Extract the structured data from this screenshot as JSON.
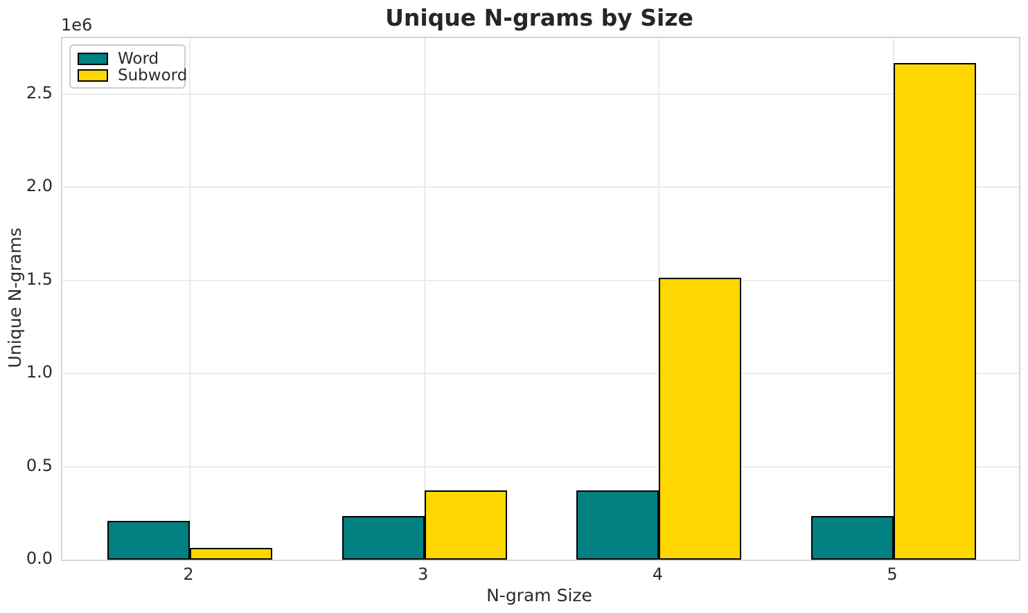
{
  "chart_data": {
    "type": "bar",
    "title": "Unique N-grams by Size",
    "xlabel": "N-gram Size",
    "ylabel": "Unique N-grams",
    "offset_text": "1e6",
    "categories": [
      "2",
      "3",
      "4",
      "5"
    ],
    "series": [
      {
        "name": "Word",
        "color": "#008080",
        "values": [
          210000,
          235000,
          370000,
          235000
        ]
      },
      {
        "name": "Subword",
        "color": "#FFD700",
        "values": [
          63000,
          370000,
          1515000,
          2665000
        ]
      }
    ],
    "bar_edge_color": "#000000",
    "ylim": [
      0,
      2800000
    ],
    "yticks": [
      0,
      500000,
      1000000,
      1500000,
      2000000,
      2500000
    ],
    "ytick_labels": [
      "0.0",
      "0.5",
      "1.0",
      "1.5",
      "2.0",
      "2.5"
    ],
    "grid": true,
    "legend_position": "upper left"
  },
  "colors": {
    "background": "#ffffff",
    "grid": "#ebebeb",
    "spine": "#d5d5d5",
    "text": "#2b2b2b",
    "title": "#262626",
    "word": "#008080",
    "subword": "#FFD700"
  }
}
